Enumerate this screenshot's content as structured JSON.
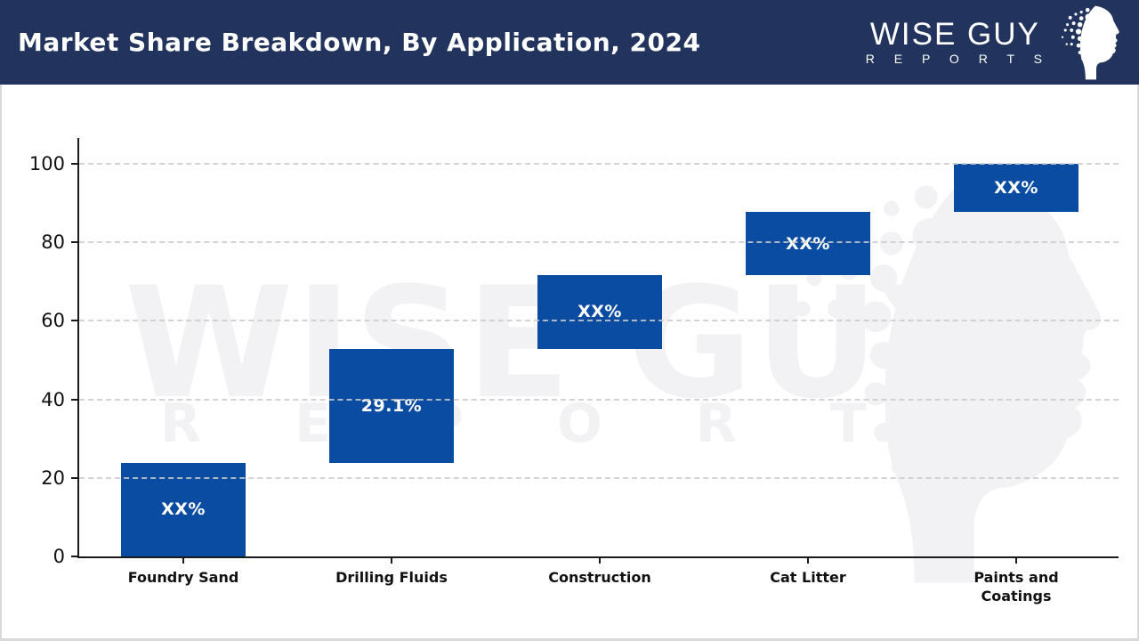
{
  "header": {
    "title": "Market Share Breakdown, By Application, 2024",
    "bg_color": "#22345e",
    "logo": {
      "line1": "WISE GUY",
      "line2": "R E P O R T S"
    }
  },
  "watermark": {
    "line1": "WISE GUY",
    "line2": "R E P O R T S"
  },
  "chart_data": {
    "type": "bar",
    "subtype": "floating-waterfall",
    "title": "Market Share Breakdown, By Application, 2024",
    "xlabel": "",
    "ylabel": "",
    "categories": [
      "Foundry Sand",
      "Drilling Fluids",
      "Construction",
      "Cat Litter",
      "Paints and Coatings"
    ],
    "segments": [
      {
        "category": "Foundry Sand",
        "base": 0,
        "value": 23.8,
        "label": "XX%"
      },
      {
        "category": "Drilling Fluids",
        "base": 23.8,
        "value": 29.1,
        "label": "29.1%"
      },
      {
        "category": "Construction",
        "base": 52.9,
        "value": 18.7,
        "label": "XX%"
      },
      {
        "category": "Cat Litter",
        "base": 71.6,
        "value": 16.1,
        "label": "XX%"
      },
      {
        "category": "Paints and Coatings",
        "base": 87.7,
        "value": 12.3,
        "label": "XX%"
      }
    ],
    "y_ticks": [
      0,
      20,
      40,
      60,
      80,
      100
    ],
    "ylim": [
      0,
      107
    ],
    "grid": "horizontal-dashed",
    "grid_color": "#cbcbcb",
    "bar_color": "#0b4ca3",
    "bar_label_color": "#ffffff",
    "axis_color": "#1a1a1a",
    "legend": "none"
  }
}
